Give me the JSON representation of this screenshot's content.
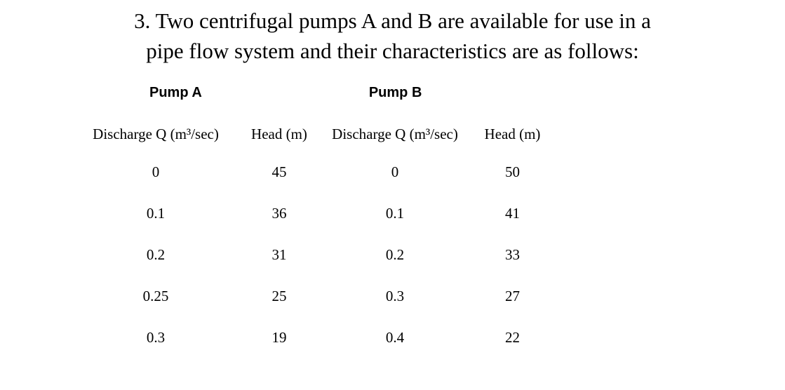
{
  "problem": {
    "title_line1": "3. Two centrifugal pumps A and B are available for use in a",
    "title_line2": "pipe flow system and their characteristics are as follows:"
  },
  "table": {
    "pump_a_label": "Pump A",
    "pump_b_label": "Pump B",
    "columns": [
      "Discharge Q (m³/sec)",
      "Head (m)",
      "Discharge Q (m³/sec)",
      "Head (m)"
    ],
    "rows": [
      {
        "a_q": "0",
        "a_h": "45",
        "b_q": "0",
        "b_h": "50"
      },
      {
        "a_q": "0.1",
        "a_h": "36",
        "b_q": "0.1",
        "b_h": "41"
      },
      {
        "a_q": "0.2",
        "a_h": "31",
        "b_q": "0.2",
        "b_h": "33"
      },
      {
        "a_q": "0.25",
        "a_h": "25",
        "b_q": "0.3",
        "b_h": "27"
      },
      {
        "a_q": "0.3",
        "a_h": "19",
        "b_q": "0.4",
        "b_h": "22"
      }
    ]
  }
}
